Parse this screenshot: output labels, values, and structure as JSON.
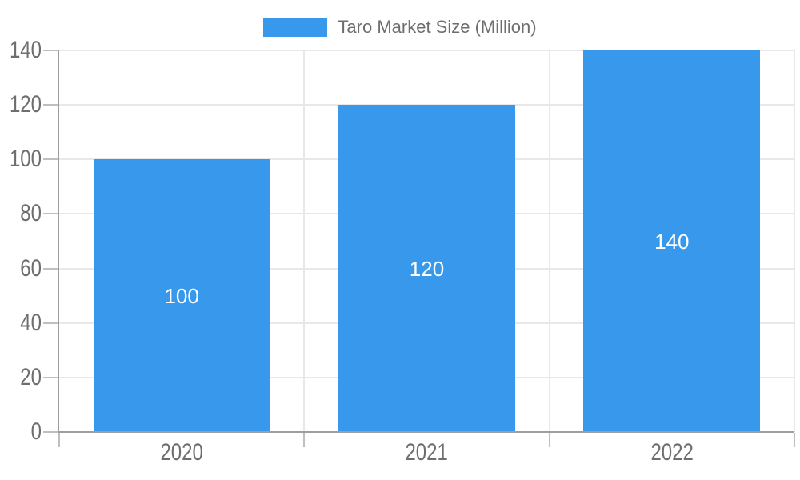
{
  "legend": {
    "label": "Taro Market Size (Million)"
  },
  "chart_data": {
    "type": "bar",
    "title": "Taro Market Size (Million)",
    "categories": [
      "2020",
      "2021",
      "2022"
    ],
    "values": [
      100,
      120,
      140
    ],
    "data_labels": [
      "100",
      "120",
      "140"
    ],
    "xlabel": "",
    "ylabel": "",
    "ylim": [
      0,
      140
    ],
    "yticks": [
      0,
      20,
      40,
      60,
      80,
      100,
      120,
      140
    ],
    "grid": true,
    "legend_position": "top-center",
    "colors": {
      "bar": "#3899ec",
      "grid": "#e8e8e8",
      "axis": "#9e9e9e",
      "tick": "#bfbfbf",
      "text": "#6e6e6e",
      "value_label": "#ffffff",
      "background": "#ffffff"
    }
  }
}
